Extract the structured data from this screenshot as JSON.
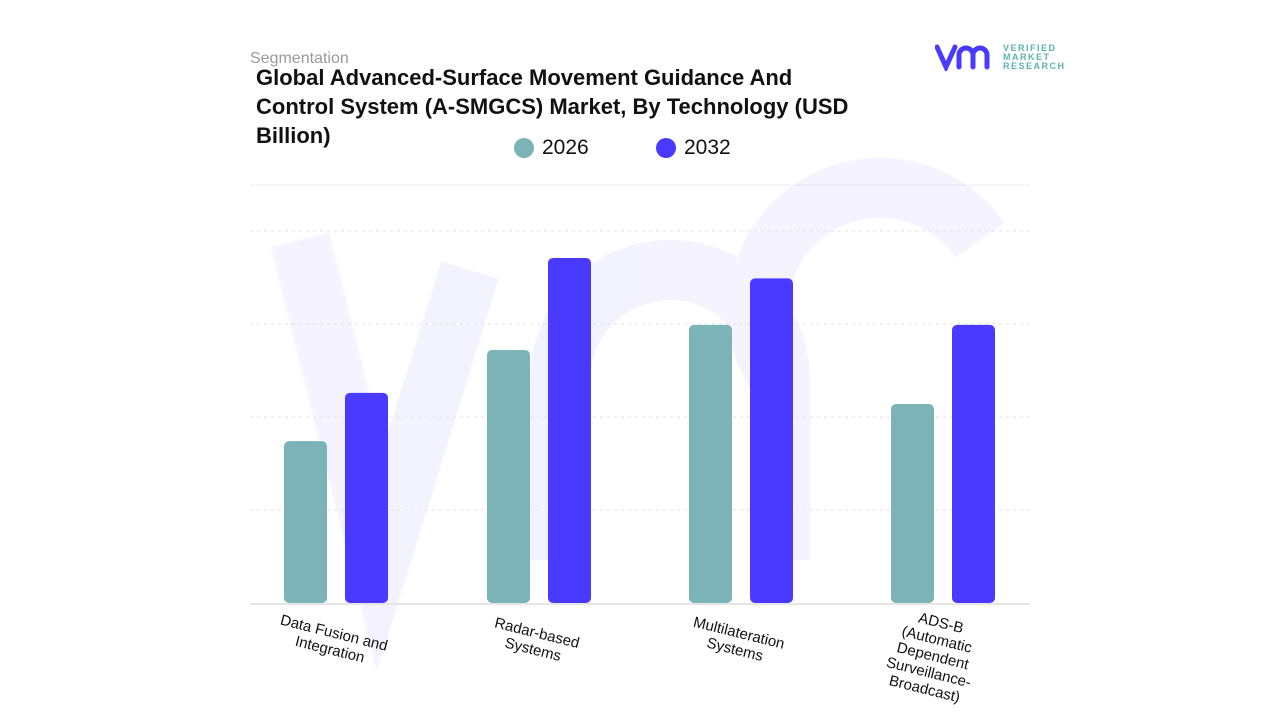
{
  "header": {
    "segment_label": "Segmentation",
    "title": "Global Advanced-Surface Movement Guidance And Control System (A-SMGCS) Market, By Technology (USD Billion)"
  },
  "logo": {
    "lines": [
      "VERIFIED",
      "MARKET",
      "RESEARCH"
    ],
    "color": "#4a3aff"
  },
  "chart_data": {
    "type": "bar",
    "title": "Global Advanced-Surface Movement Guidance And Control System (A-SMGCS) Market, By Technology (USD Billion)",
    "categories": [
      "Data Fusion and Integration",
      "Radar-based Systems",
      "Multilateration Systems",
      "ADS-B (Automatic Dependent Surveillance-Broadcast)"
    ],
    "series": [
      {
        "name": "2026",
        "color": "#7bb3b6",
        "values": [
          1.74,
          2.72,
          2.99,
          2.14
        ]
      },
      {
        "name": "2032",
        "color": "#4a3aff",
        "values": [
          2.26,
          3.71,
          3.49,
          2.99
        ]
      }
    ],
    "ylim": [
      0,
      4
    ],
    "grid": true,
    "legend_position": "top",
    "xlabel": "",
    "ylabel": ""
  }
}
